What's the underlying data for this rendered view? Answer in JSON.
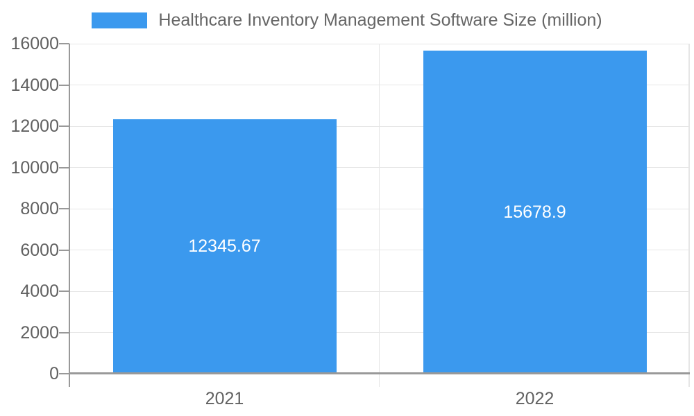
{
  "colors": {
    "bar": "#3B99EE",
    "axis_line": "#999999",
    "gridline": "#E6E6E6",
    "tick_label": "#616161",
    "legend_text": "#666666",
    "data_label": "#FFFFFF",
    "background": "#FFFFFF"
  },
  "legend": {
    "label": "Healthcare Inventory Management Software Size (million)",
    "swatch_color": "#3B99EE",
    "position": "top-center"
  },
  "chart_data": {
    "type": "bar",
    "title": "",
    "xlabel": "",
    "ylabel": "",
    "categories": [
      "2021",
      "2022"
    ],
    "series": [
      {
        "name": "Healthcare Inventory Management Software Size (million)",
        "values": [
          12345.67,
          15678.9
        ]
      }
    ],
    "data_labels": [
      "12345.67",
      "15678.9"
    ],
    "data_label_position": "inside-center",
    "ylim": [
      0,
      16000
    ],
    "ytick_interval": 2000,
    "ytick_labels": [
      "0",
      "2000",
      "4000",
      "6000",
      "8000",
      "10000",
      "12000",
      "14000",
      "16000"
    ],
    "grid": true,
    "legend_position": "top"
  }
}
